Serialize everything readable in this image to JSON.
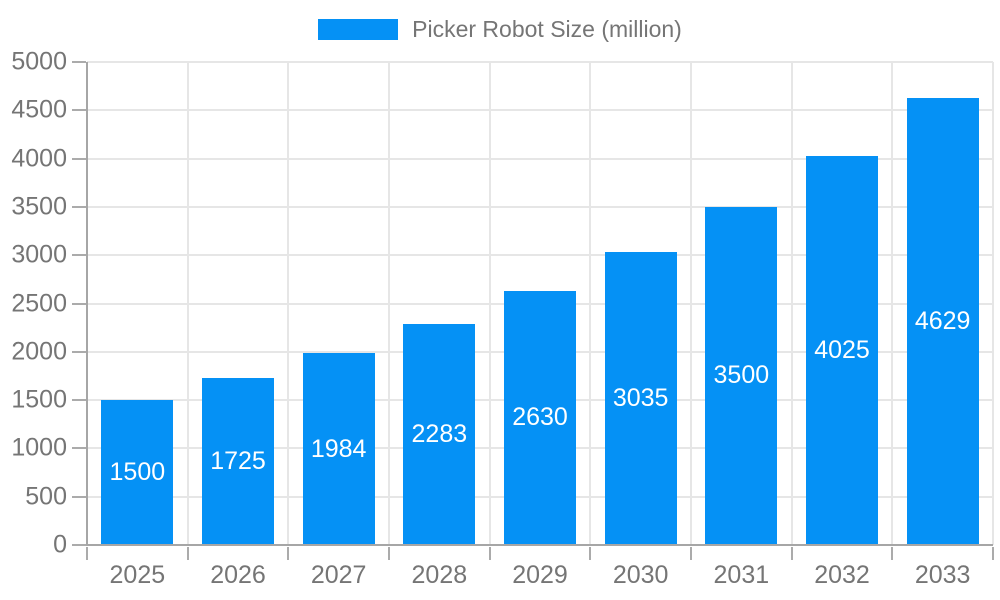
{
  "chart_data": {
    "type": "bar",
    "title": "",
    "legend_entries": [
      "Picker Robot Size (million)"
    ],
    "legend_position": "top",
    "categories": [
      "2025",
      "2026",
      "2027",
      "2028",
      "2029",
      "2030",
      "2031",
      "2032",
      "2033"
    ],
    "series": [
      {
        "name": "Picker Robot Size (million)",
        "values": [
          1500,
          1725,
          1984,
          2283,
          2630,
          3035,
          3500,
          4025,
          4629
        ]
      }
    ],
    "xlabel": "",
    "ylabel": "",
    "ylim": [
      0,
      5000
    ],
    "y_ticks": [
      0,
      500,
      1000,
      1500,
      2000,
      2500,
      3000,
      3500,
      4000,
      4500,
      5000
    ],
    "grid": true,
    "bar_labels_visible": true
  },
  "colors": {
    "bar": "#0591f5",
    "bar_label_text": "#ffffff",
    "axis_line": "#a6a6a6",
    "tick": "#ababab",
    "gridline": "#e6e6e6",
    "axis_text": "#757575",
    "legend_text": "#757575",
    "background": "#ffffff"
  }
}
